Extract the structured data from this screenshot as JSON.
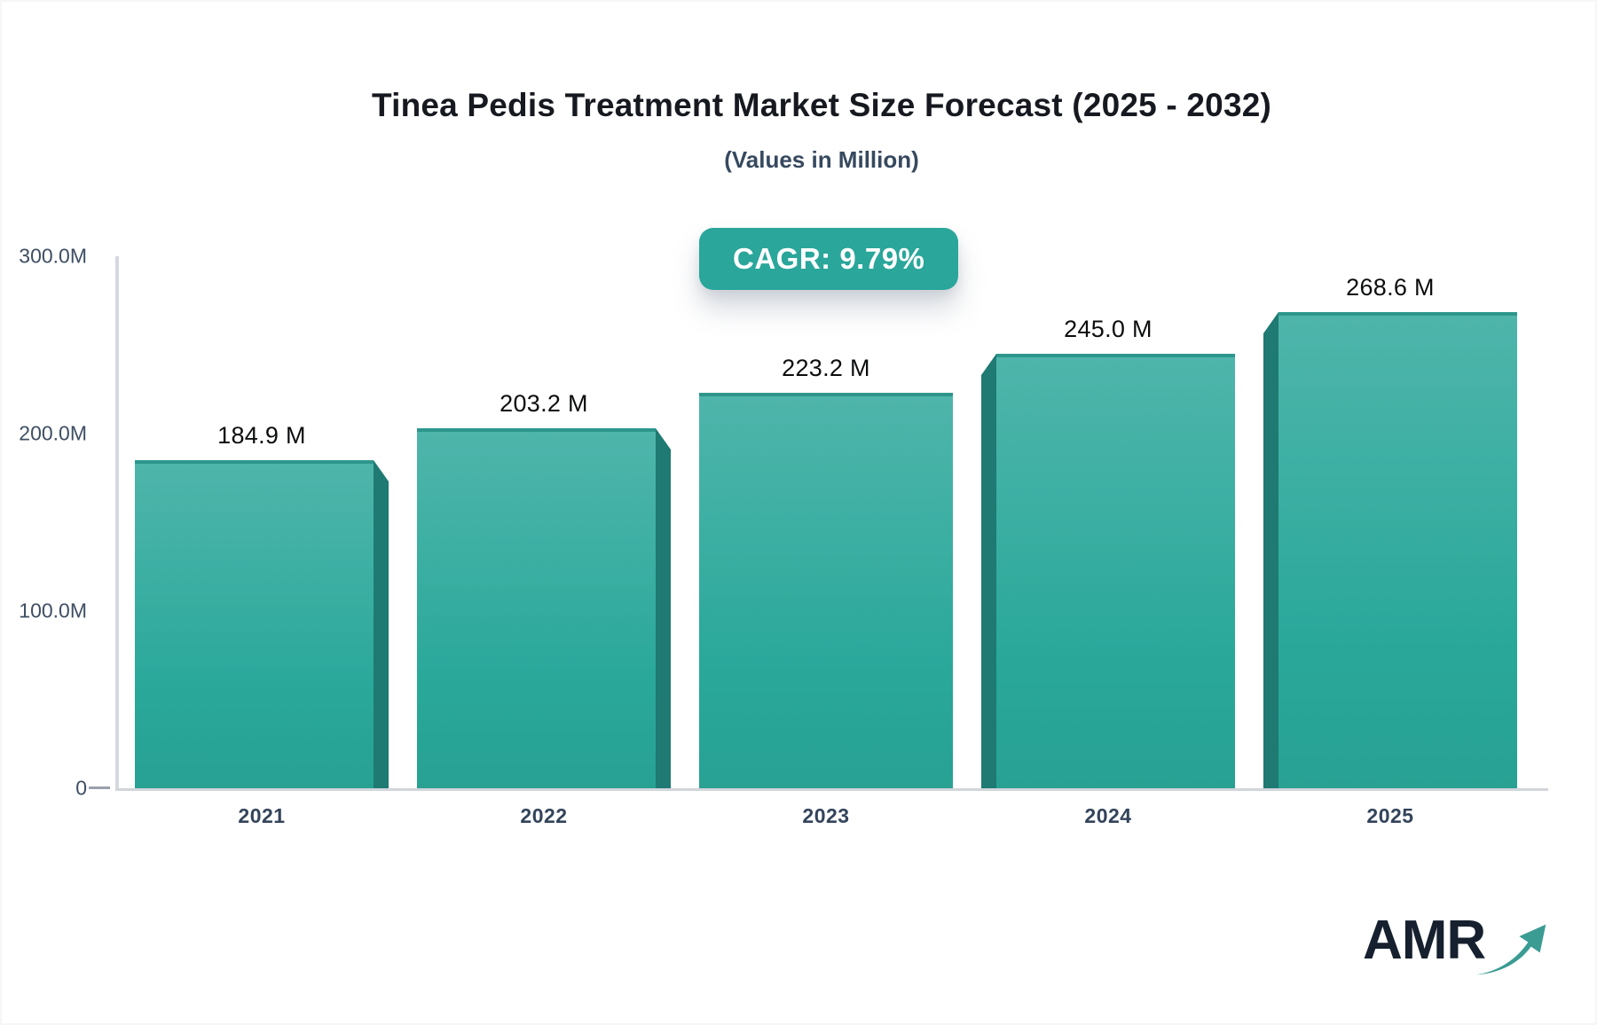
{
  "header": {
    "title": "Tinea Pedis Treatment Market Size Forecast (2025 - 2032)",
    "subtitle": "(Values in Million)",
    "cagr_badge": "CAGR: 9.79%"
  },
  "chart_data": {
    "type": "bar",
    "title": "Tinea Pedis Treatment Market Size Forecast (2025 - 2032)",
    "subtitle": "(Values in Million)",
    "categories": [
      "2021",
      "2022",
      "2023",
      "2024",
      "2025"
    ],
    "values": [
      184.9,
      203.2,
      223.2,
      245.0,
      268.6
    ],
    "value_labels": [
      "184.9 M",
      "203.2 M",
      "223.2 M",
      "245.0 M",
      "268.6 M"
    ],
    "cagr_percent": 9.79,
    "ylabel": "",
    "xlabel": "",
    "ylim": [
      0,
      300
    ],
    "yticks": [
      {
        "label": "300.0M",
        "value": 300
      },
      {
        "label": "200.0M",
        "value": 200
      },
      {
        "label": "100.0M",
        "value": 100
      },
      {
        "label": "0",
        "value": 0
      }
    ],
    "grid": false,
    "legend": false,
    "bar_bevels": [
      "right",
      "right",
      "none",
      "left",
      "left"
    ]
  },
  "logo": {
    "text": "AMR",
    "icon": "trending-up-arrow"
  },
  "colors": {
    "bar_top": "#4fb5ab",
    "bar_bottom": "#29a89a",
    "bar_edge": "#2d968b",
    "bar_bevel": "#1e7a72",
    "badge_bg": "#2aa69b",
    "badge_text": "#ffffff",
    "axis_line": "#d5d8de",
    "tick_text": "#3e4e63",
    "category_text": "#33445b",
    "value_text": "#0c0d0f",
    "title_text": "#16191f",
    "subtitle_text": "#36495f",
    "logo_text": "#16202e",
    "logo_arrow": "#3a9c93"
  }
}
